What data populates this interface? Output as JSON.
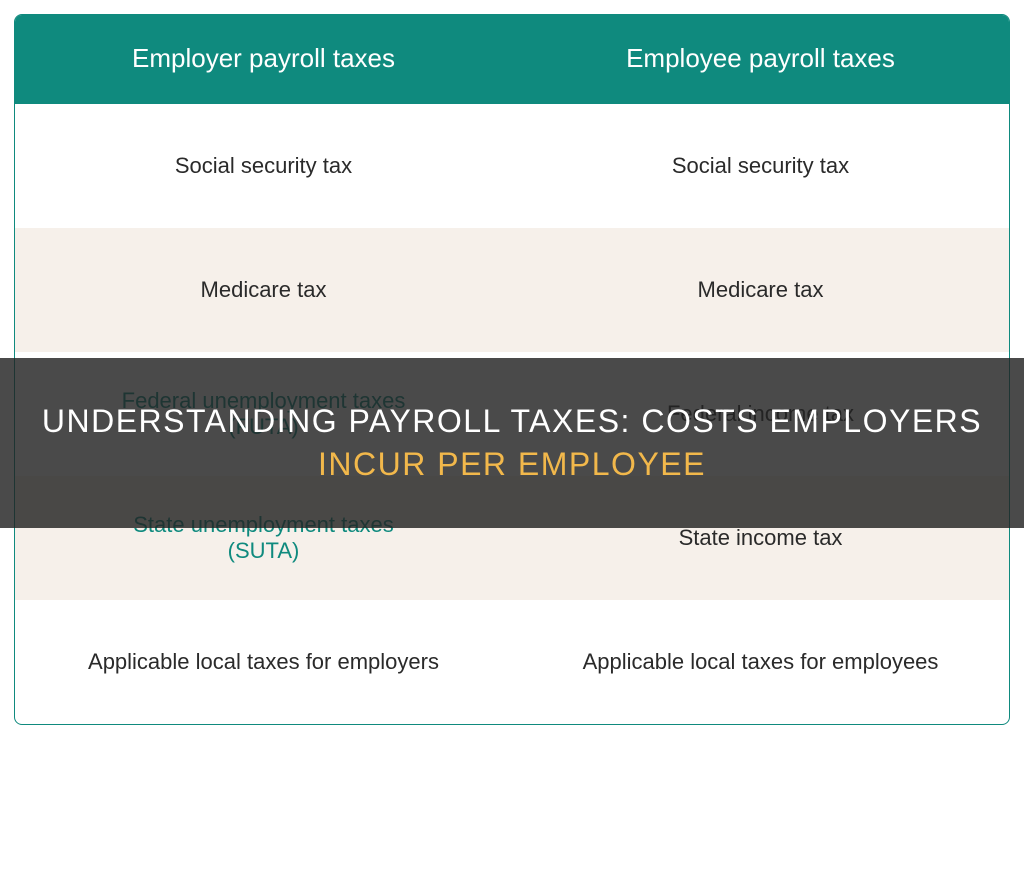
{
  "colors": {
    "teal": "#0f8a7e",
    "cream": "#f6f0ea",
    "overlay_bg": "rgba(34,34,34,0.82)",
    "overlay_white": "#ffffff",
    "overlay_accent": "#f2b84b",
    "text": "#2a2a2a",
    "border": "#0f8a7e"
  },
  "table": {
    "type": "table",
    "columns": [
      "Employer payroll taxes",
      "Employee payroll taxes"
    ],
    "header_fontsize": 26,
    "cell_fontsize": 22,
    "rows": [
      {
        "alt": false,
        "employer": {
          "main": "Social security tax",
          "sub": "",
          "link": false
        },
        "employee": {
          "main": "Social security tax",
          "sub": "",
          "link": false
        }
      },
      {
        "alt": true,
        "employer": {
          "main": "Medicare tax",
          "sub": "",
          "link": false
        },
        "employee": {
          "main": "Medicare tax",
          "sub": "",
          "link": false
        }
      },
      {
        "alt": false,
        "employer": {
          "main": "Federal unemployment taxes",
          "sub": "(FUTA)",
          "link": true
        },
        "employee": {
          "main": "Federal income tax",
          "sub": "",
          "link": false
        }
      },
      {
        "alt": true,
        "employer": {
          "main": "State unemployment taxes",
          "sub": "(SUTA)",
          "link": true
        },
        "employee": {
          "main": "State income tax",
          "sub": "",
          "link": false
        }
      },
      {
        "alt": false,
        "employer": {
          "main": "Applicable local taxes for employers",
          "sub": "",
          "link": false
        },
        "employee": {
          "main": "Applicable local taxes for employees",
          "sub": "",
          "link": false
        }
      }
    ]
  },
  "overlay": {
    "line1": "UNDERSTANDING PAYROLL TAXES: COSTS EMPLOYERS",
    "line2": "INCUR PER EMPLOYEE",
    "fontsize": 32,
    "letter_spacing": 1.5
  }
}
